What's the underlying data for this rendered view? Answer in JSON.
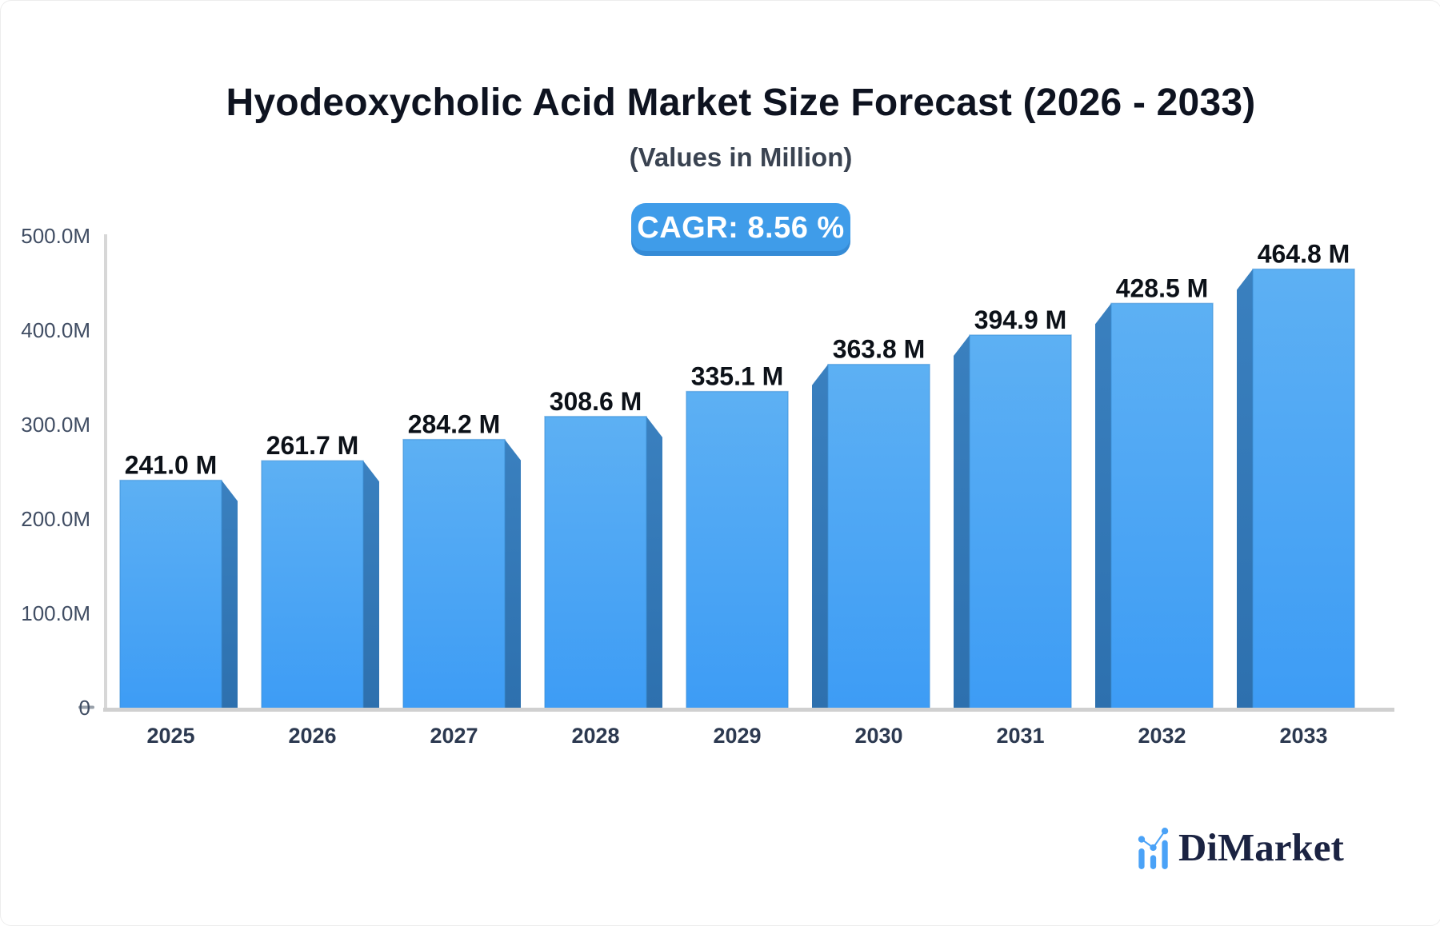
{
  "header": {
    "title": "Hyodeoxycholic Acid Market Size Forecast (2026 - 2033)",
    "subtitle": "(Values in Million)",
    "cagr_label": "CAGR: 8.56 %"
  },
  "chart_data": {
    "type": "bar",
    "title": "Hyodeoxycholic Acid Market Size Forecast (2026 - 2033)",
    "subtitle": "(Values in Million)",
    "unit": "Million",
    "cagr_percent": 8.56,
    "categories": [
      "2025",
      "2026",
      "2027",
      "2028",
      "2029",
      "2030",
      "2031",
      "2032",
      "2033"
    ],
    "values": [
      241.0,
      261.7,
      284.2,
      308.6,
      335.1,
      363.8,
      394.9,
      428.5,
      464.8
    ],
    "value_labels": [
      "241.0 M",
      "261.7 M",
      "284.2 M",
      "308.6 M",
      "335.1 M",
      "363.8 M",
      "394.9 M",
      "428.5 M",
      "464.8 M"
    ],
    "y_ticks": [
      {
        "label": "500.0M",
        "value": 500
      },
      {
        "label": "400.0M",
        "value": 400
      },
      {
        "label": "300.0M",
        "value": 300
      },
      {
        "label": "200.0M",
        "value": 200
      },
      {
        "label": "100.0M",
        "value": 100
      },
      {
        "label": "0",
        "value": 0
      }
    ],
    "ylim": [
      0,
      500
    ],
    "xlabel": "",
    "ylabel": "",
    "grid": false,
    "legend": false,
    "colors": {
      "bar_face_top": "#5db0f3",
      "bar_face_bottom": "#3d9cf5",
      "bar_face_stroke": "#3a8ed6",
      "bar_side_top": "#3a80bf",
      "bar_side_bottom": "#2d70ae",
      "badge_bg": "#3f9ce9",
      "value_label": "#0c1118",
      "x_label": "#2c3950",
      "y_label": "#404d63",
      "axis_line": "#d7d7d7",
      "baseline": "#d0d0d0",
      "zero_dash": "#98a0aa",
      "logo_blue": "#4aa2f7",
      "logo_navy": "#1b2342"
    }
  },
  "logo": {
    "text": "DiMarket"
  }
}
